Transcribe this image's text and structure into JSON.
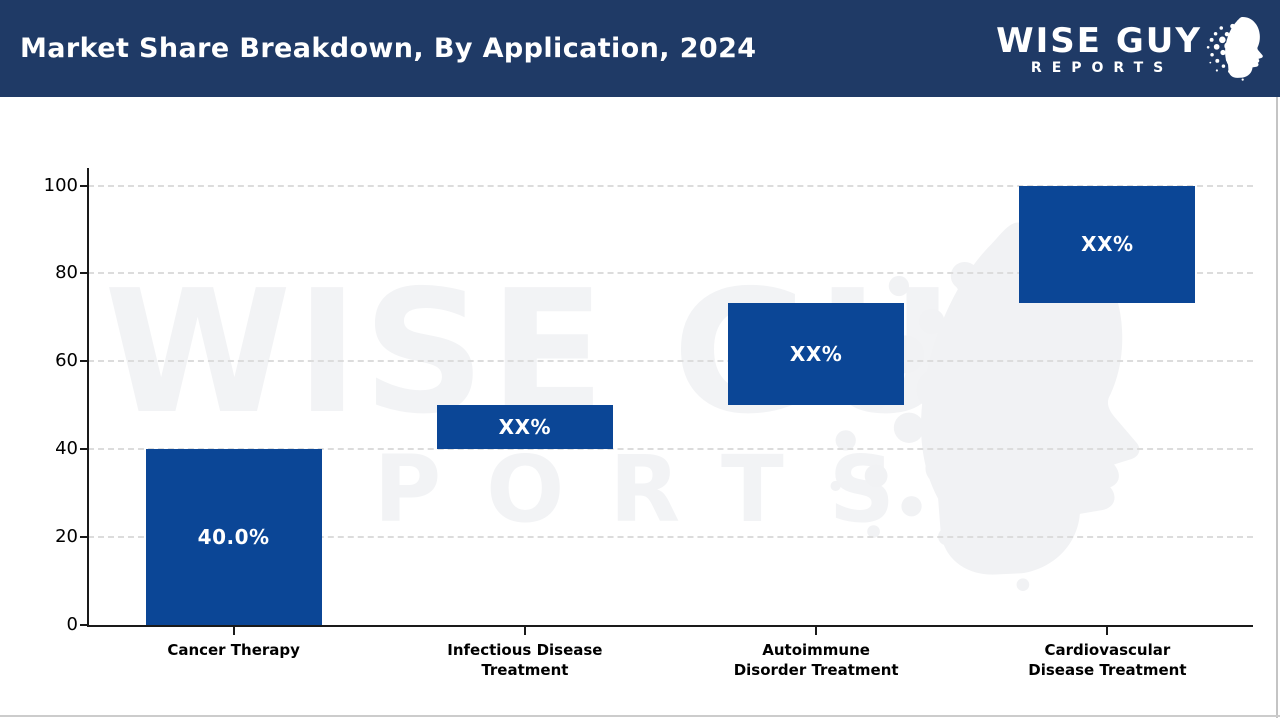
{
  "header": {
    "title": "Market Share Breakdown, By Application, 2024",
    "bg_color": "#1f3a66",
    "logo": {
      "wordmark": "WISE GUY",
      "subtext": "REPORTS"
    }
  },
  "watermark": {
    "wordmark": "WISE GUY",
    "subtext": "REPORTS"
  },
  "chart_data": {
    "type": "bar",
    "subtype": "waterfall",
    "title": "Market Share Breakdown, By Application, 2024",
    "categories": [
      "Cancer Therapy",
      "Infectious Disease Treatment",
      "Autoimmune Disorder Treatment",
      "Cardiovascular Disease Treatment"
    ],
    "values": [
      40.0,
      10.0,
      23.3,
      26.7
    ],
    "bars": [
      {
        "lines": [
          "Cancer Therapy"
        ],
        "start": 0,
        "end": 40,
        "label": "40.0%"
      },
      {
        "lines": [
          "Infectious Disease",
          "Treatment"
        ],
        "start": 40,
        "end": 50,
        "label": "XX%"
      },
      {
        "lines": [
          "Autoimmune",
          "Disorder Treatment"
        ],
        "start": 50,
        "end": 73.3,
        "label": "XX%"
      },
      {
        "lines": [
          "Cardiovascular",
          "Disease Treatment"
        ],
        "start": 73.3,
        "end": 100,
        "label": "XX%"
      }
    ],
    "yticks": [
      0,
      20,
      40,
      60,
      80,
      100
    ],
    "ylim": [
      0,
      104
    ],
    "xlabel": "",
    "ylabel": "",
    "grid": "horizontal-dashed",
    "legend": "none",
    "bar_color": "#0b4696",
    "bar_label_color": "#ffffff",
    "axis_color": "#1a1a1a",
    "grid_color": "#dcdcdc"
  }
}
